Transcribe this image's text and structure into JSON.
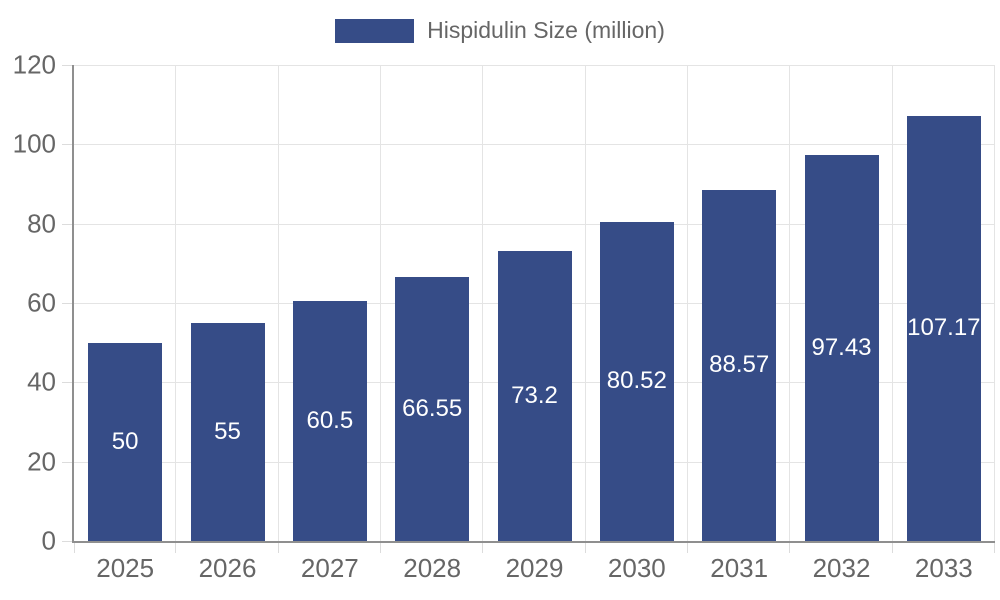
{
  "chart_data": {
    "type": "bar",
    "legend": "Hispidulin Size (million)",
    "categories": [
      "2025",
      "2026",
      "2027",
      "2028",
      "2029",
      "2030",
      "2031",
      "2032",
      "2033"
    ],
    "values": [
      50,
      55,
      60.5,
      66.55,
      73.2,
      80.52,
      88.57,
      97.43,
      107.17
    ],
    "value_labels": [
      "50",
      "55",
      "60.5",
      "66.55",
      "73.2",
      "80.52",
      "88.57",
      "97.43",
      "107.17"
    ],
    "ylim": [
      0,
      120
    ],
    "yticks": [
      0,
      20,
      40,
      60,
      80,
      100,
      120
    ],
    "grid": true,
    "legend_position": "top-center",
    "colors": {
      "bar": "#364C87",
      "bar_label": "#ffffff",
      "axis_label": "#666666",
      "legend_label": "#666666",
      "grid_line": "#e4e4e4",
      "spine": "#8f8f8f",
      "background": "#ffffff"
    }
  }
}
